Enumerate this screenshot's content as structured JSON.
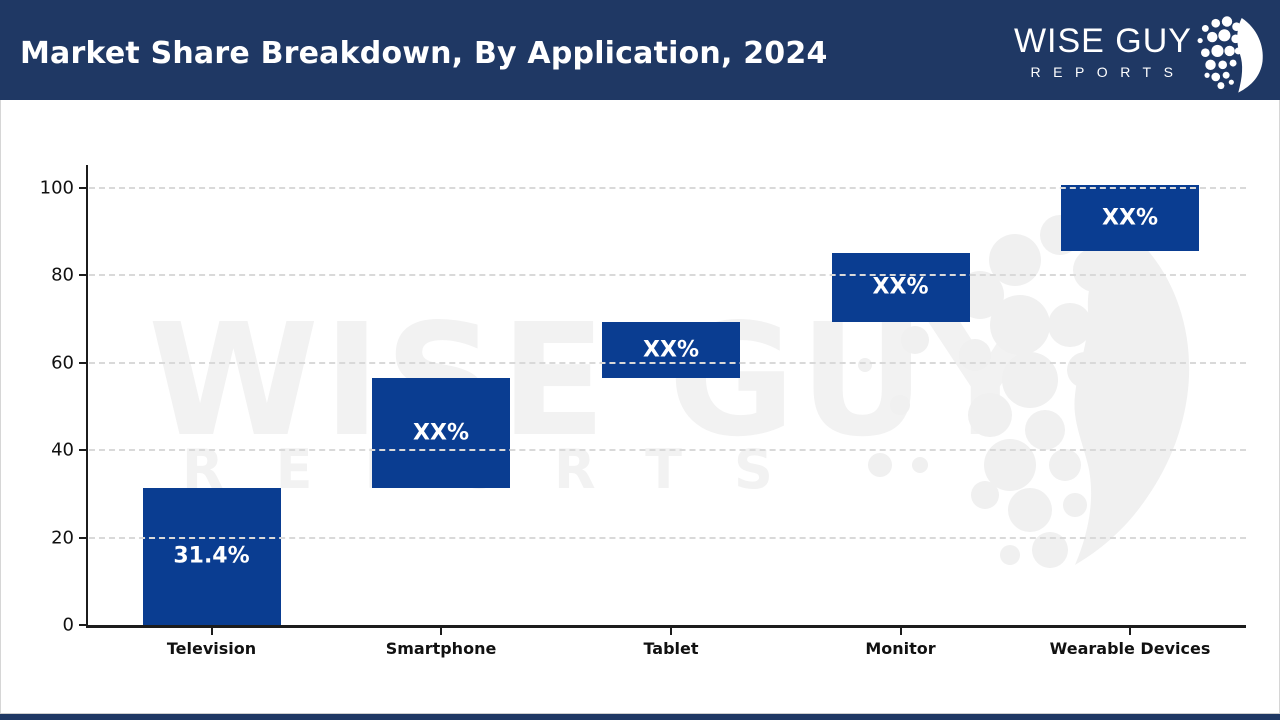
{
  "header": {
    "title": "Market Share Breakdown, By Application, 2024",
    "logo": {
      "line1": "WISE GUY",
      "line2": "REPORTS"
    }
  },
  "watermark": {
    "line1": "WISE GUY",
    "line2": "REPORTS"
  },
  "colors": {
    "header_bg": "#1f3864",
    "bar": "#0a3d91",
    "bar_label_text": "#ffffff",
    "gridline": "#d9d9d9",
    "axis": "#1c1c1c",
    "watermark": "#f2f2f2"
  },
  "chart_data": {
    "type": "bar",
    "subtype": "waterfall",
    "title": "Market Share Breakdown, By Application, 2024",
    "xlabel": "",
    "ylabel": "",
    "ylim": [
      0,
      105
    ],
    "grid": "horizontal-dashed",
    "legend": "none",
    "y_ticks": [
      0,
      20,
      40,
      60,
      80,
      100
    ],
    "categories": [
      "Television",
      "Smartphone",
      "Tablet",
      "Monitor",
      "Wearable Devices"
    ],
    "segments": [
      {
        "category": "Television",
        "start": 0,
        "end": 31.4,
        "label": "31.4%"
      },
      {
        "category": "Smartphone",
        "start": 31.4,
        "end": 56.5,
        "label": "XX%"
      },
      {
        "category": "Tablet",
        "start": 56.5,
        "end": 69.3,
        "label": "XX%"
      },
      {
        "category": "Monitor",
        "start": 69.3,
        "end": 85.0,
        "label": "XX%"
      },
      {
        "category": "Wearable Devices",
        "start": 85.5,
        "end": 100.5,
        "label": "XX%"
      }
    ]
  }
}
